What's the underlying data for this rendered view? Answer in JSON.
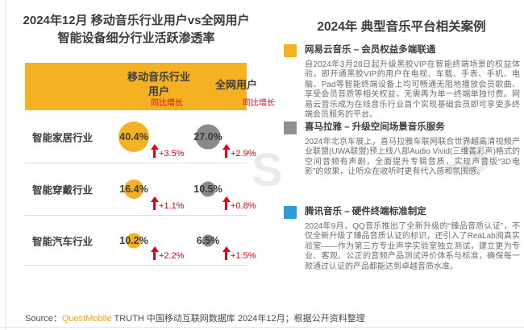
{
  "left_chart": {
    "title_line1": "2024年12月 移动音乐行业用户vs全网用户",
    "title_line2": "智能设备细分行业活跃渗透率",
    "columns": [
      {
        "label": "移动音乐行业\n用户",
        "growth_caption": "同比增长"
      },
      {
        "label": "全网用户",
        "growth_caption": "同比增长"
      }
    ]
  },
  "chart_data": {
    "type": "table",
    "title": "2024年12月 移动音乐行业用户vs全网用户智能设备细分行业活跃渗透率",
    "categories": [
      "智能家居行业",
      "智能穿戴行业",
      "智能汽车行业"
    ],
    "series": [
      {
        "name": "移动音乐行业用户",
        "values": [
          40.4,
          16.4,
          10.2
        ],
        "value_labels": [
          "40.4%",
          "16.4%",
          "10.2%"
        ],
        "growth_labels": [
          "+3.5%",
          "+1.1%",
          "+2.2%"
        ],
        "color": "#f4b223"
      },
      {
        "name": "全网用户",
        "values": [
          27.0,
          10.5,
          6.5
        ],
        "value_labels": [
          "27.0%",
          "10.5%",
          "6.5%"
        ],
        "growth_labels": [
          "+2.9%",
          "+0.8%",
          "+1.5%"
        ],
        "color": "#8a8a8a"
      }
    ],
    "unit": "%",
    "growth_caption": "同比增长",
    "layout_hint": "bubble size proportional to value, red up-arrows show YoY growth"
  },
  "right_panel": {
    "title": "2024年 典型音乐平台相关案例",
    "cases": [
      {
        "bullet_color": "#f4b223",
        "heading": "网易云音乐 – 会员权益多端联通",
        "body": "自2024年3月28日起升级黑胶VIP在智能终端场景的权益体验。即开通黑胶VIP的用户在电视、车载、手表、手机、电脑、Pad等智能终端设备上均可畅通无阻地播放会员歌曲、享受会员音质等相关权益，无需再为单一终端单独付费。网易云音乐成为在线音乐行业首个实现基础会员即可享受多终端会员服务的平台。"
      },
      {
        "bullet_color": "#8f8f8f",
        "heading": "喜马拉雅 – 升级空间场景音乐服务",
        "body": "2024年北京车展上，喜马拉雅车联网联合世界超高清视频产业联盟(UWA联盟)预上线八部Audio Vivid(三维菁彩声)格式的空间音频有声剧，全面提升专辑音质，实现声音版“3D电影”的效果，让听众在收听时更有代入感和氛围感。"
      },
      {
        "bullet_color": "#2f9cd8",
        "heading": "腾讯音乐 – 硬件终端标准制定",
        "body": "2024年9月，QQ音乐推出了全新升级的“臻品音质认证”，不仅全新升级了臻品音质认证的标识，还引入了ReaLab阅真实验室——作为第三方专业声学实验室独立测试，建立更为专业、客观、公正的音频产品测试评价体系与标准，确保每一款通过认证的产品都能达到卓越音质水准。"
      }
    ]
  },
  "footer": {
    "source_label": "Source：",
    "brand": "QuestMobile",
    "source_rest": " TRUTH 中国移动互联网数据库 2024年12月；根据公开资料整理"
  },
  "watermark": {
    "fragment_1": ".S",
    "fragment_2": "S"
  },
  "colors": {
    "accent_yellow": "#f4b223",
    "bubble_gray": "#8a8a8a",
    "bullet_blue": "#2f9cd8",
    "growth_red": "#e60012",
    "brand_orange": "#f7a11a"
  }
}
